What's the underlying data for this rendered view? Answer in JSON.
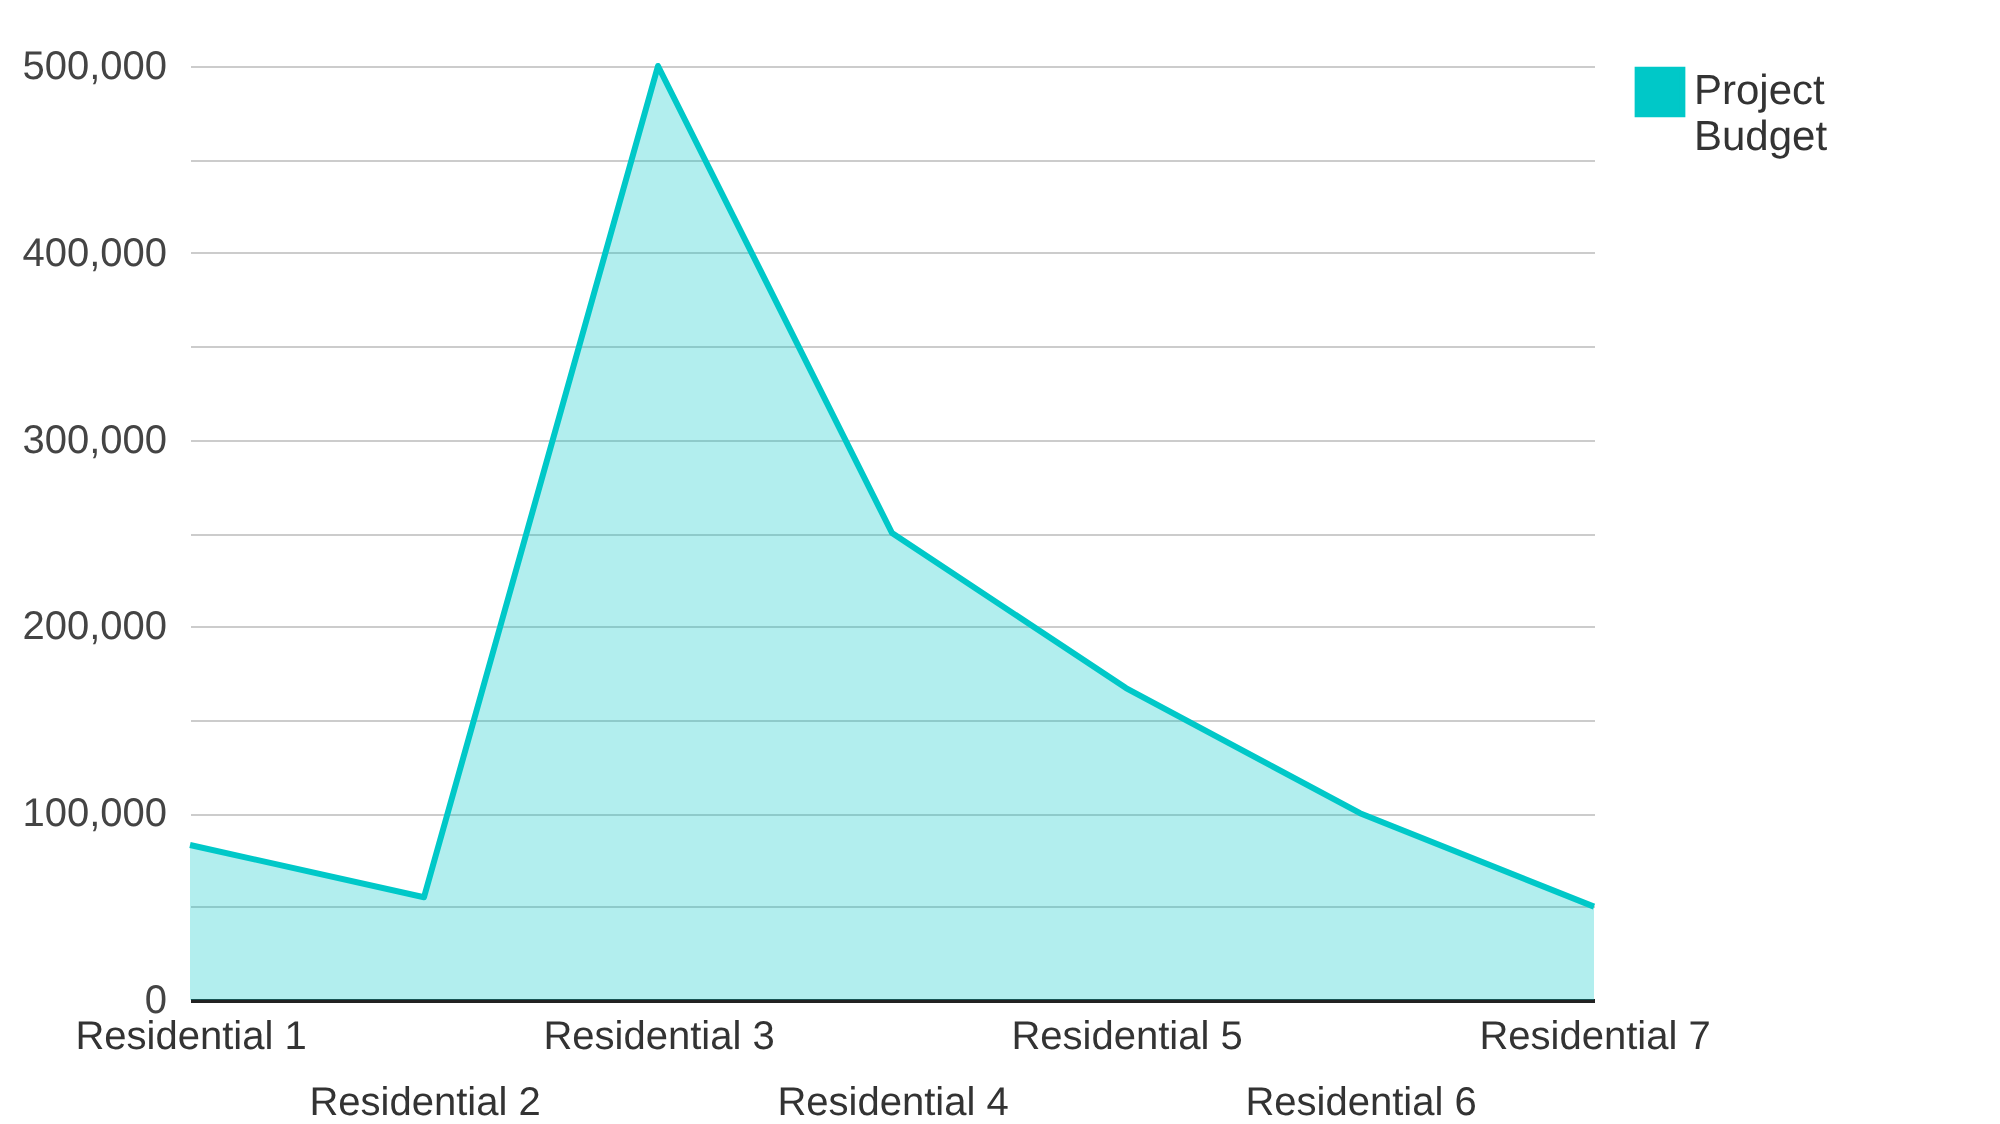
{
  "chart_data": {
    "type": "area",
    "categories": [
      "Residential 1",
      "Residential 2",
      "Residential 3",
      "Residential 4",
      "Residential 5",
      "Residential 6",
      "Residential 7"
    ],
    "series": [
      {
        "name": "Project Budget",
        "color": "#00c8c8",
        "values": [
          83000,
          55000,
          500000,
          250000,
          167000,
          100000,
          50000
        ]
      }
    ],
    "ylim": [
      0,
      500000
    ],
    "yticks": [
      0,
      {
        "value": 50000,
        "label": null
      },
      {
        "value": 100000,
        "label": "100,000"
      },
      {
        "value": 150000,
        "label": null
      },
      {
        "value": 200000,
        "label": "200,000"
      },
      {
        "value": 250000,
        "label": null
      },
      {
        "value": 300000,
        "label": "300,000"
      },
      {
        "value": 350000,
        "label": null
      },
      {
        "value": 400000,
        "label": "400,000"
      },
      {
        "value": 450000,
        "label": null
      },
      {
        "value": 500000,
        "label": "500,000"
      }
    ],
    "grid": "y",
    "legend": "top right"
  }
}
